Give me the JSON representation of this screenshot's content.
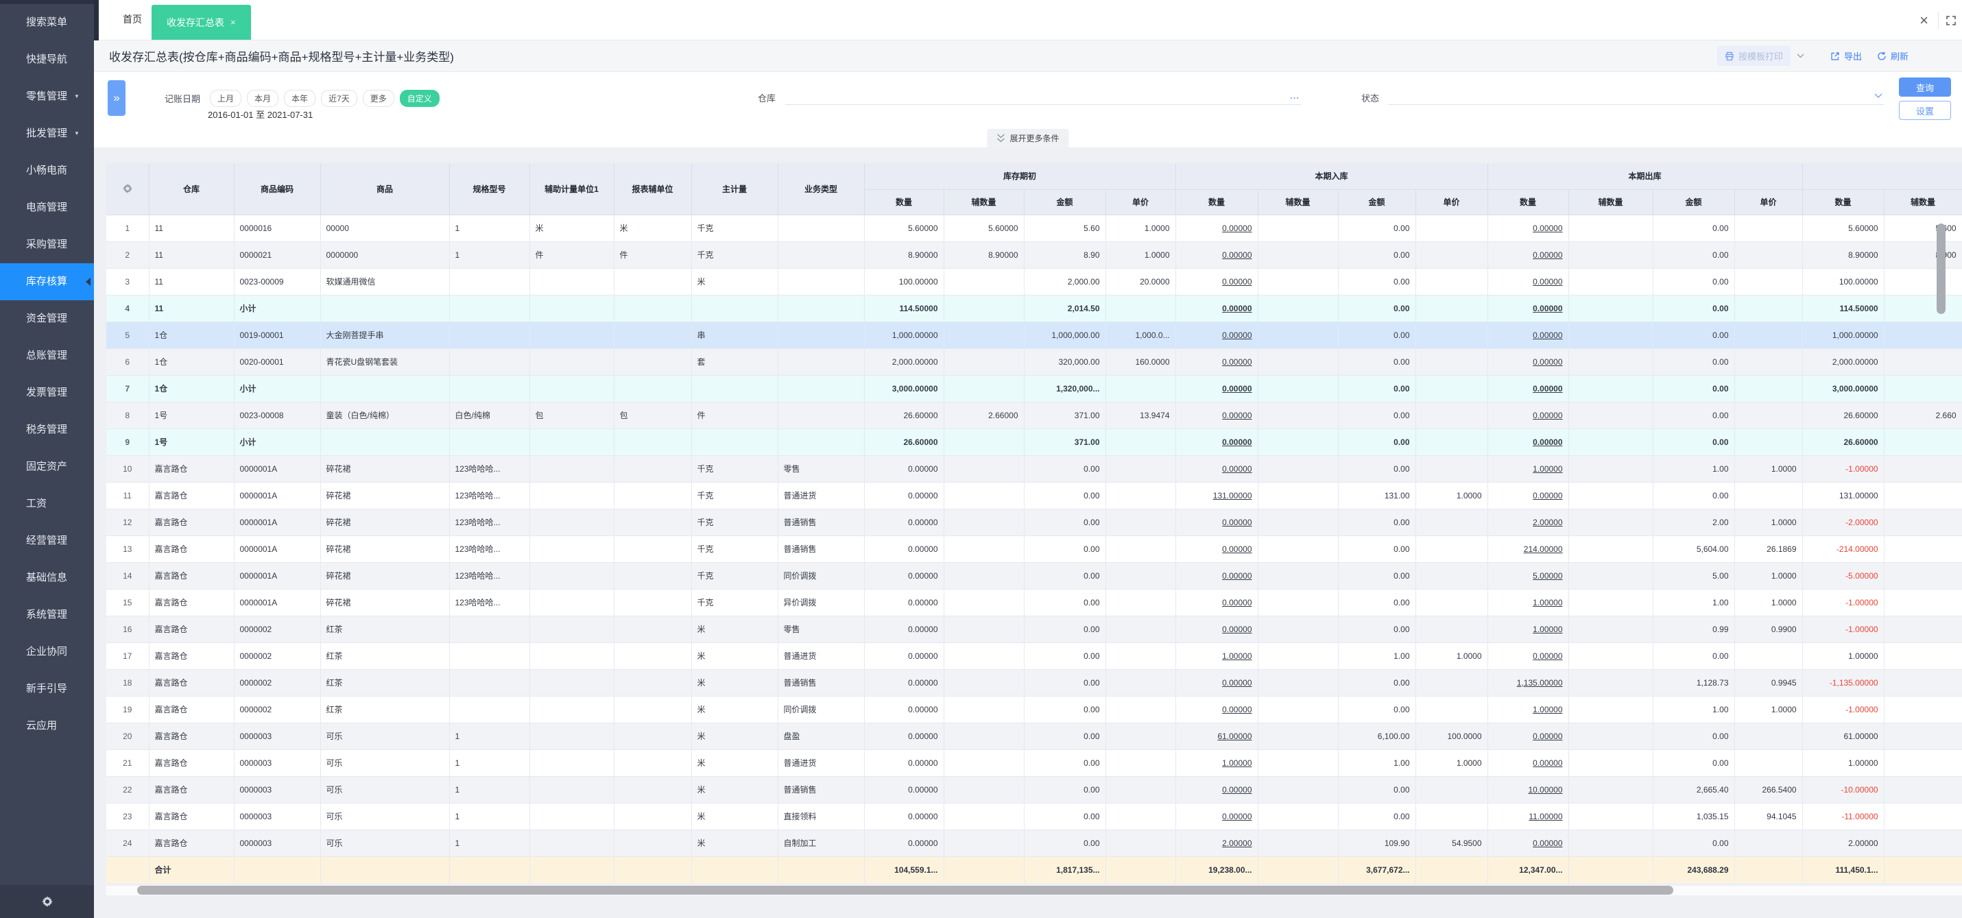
{
  "colors": {
    "accent_green": "#3cd09f",
    "accent_blue": "#1f8ffb",
    "link_blue": "#3d7ff8",
    "negative_red": "#f04134"
  },
  "sidebar": {
    "items": [
      {
        "label": "搜索菜单"
      },
      {
        "label": "快捷导航"
      },
      {
        "label": "零售管理",
        "arrow": true
      },
      {
        "label": "批发管理",
        "arrow": true
      },
      {
        "label": "小畅电商"
      },
      {
        "label": "电商管理"
      },
      {
        "label": "采购管理"
      },
      {
        "label": "库存核算",
        "active": true
      },
      {
        "label": "资金管理"
      },
      {
        "label": "总账管理"
      },
      {
        "label": "发票管理"
      },
      {
        "label": "税务管理"
      },
      {
        "label": "固定资产"
      },
      {
        "label": "工资"
      },
      {
        "label": "经营管理"
      },
      {
        "label": "基础信息"
      },
      {
        "label": "系统管理"
      },
      {
        "label": "企业协同"
      },
      {
        "label": "新手引导"
      },
      {
        "label": "云应用"
      }
    ]
  },
  "tabbar": {
    "home_label": "首页",
    "active_label": "收发存汇总表"
  },
  "titlebar": {
    "title": "收发存汇总表(按仓库+商品编码+商品+规格型号+主计量+业务类型)",
    "print_label": "按模板打印",
    "export_label": "导出",
    "refresh_label": "刷新"
  },
  "filters": {
    "date_label": "记账日期",
    "date_pills": [
      "上月",
      "本月",
      "本年",
      "近7天",
      "更多"
    ],
    "custom_pill": "自定义",
    "date_range": "2016-01-01 至 2021-07-31",
    "warehouse_label": "仓库",
    "warehouse_more": "...",
    "status_label": "状态",
    "query_label": "查询",
    "settings_label": "设置",
    "expand_more_label": "展开更多条件"
  },
  "table": {
    "left_headers": [
      "仓库",
      "商品编码",
      "商品",
      "规格型号",
      "辅助计量单位1",
      "报表辅单位",
      "主计量",
      "业务类型"
    ],
    "groups": [
      {
        "label": "库存期初",
        "span": 4
      },
      {
        "label": "本期入库",
        "span": 4
      },
      {
        "label": "本期出库",
        "span": 4
      },
      {
        "label": "",
        "span": 2
      }
    ],
    "sub_headers": [
      "数量",
      "辅数量",
      "金额",
      "单价"
    ],
    "rows": [
      {
        "num": "1",
        "type": "normal",
        "cells": [
          "11",
          "0000016",
          "00000",
          "1",
          "米",
          "米",
          "千克",
          "",
          "5.60000",
          "5.60000",
          "5.60",
          "1.0000",
          "0.00000",
          "",
          "0.00",
          "",
          "0.00000",
          "",
          "0.00",
          "",
          "5.60000",
          "5.600"
        ]
      },
      {
        "num": "2",
        "type": "normal",
        "cells": [
          "11",
          "0000021",
          "0000000",
          "1",
          "件",
          "件",
          "千克",
          "",
          "8.90000",
          "8.90000",
          "8.90",
          "1.0000",
          "0.00000",
          "",
          "0.00",
          "",
          "0.00000",
          "",
          "0.00",
          "",
          "8.90000",
          "8.900"
        ]
      },
      {
        "num": "3",
        "type": "normal",
        "cells": [
          "11",
          "0023-00009",
          "软媒通用微信",
          "",
          "",
          "",
          "米",
          "",
          "100.00000",
          "",
          "2,000.00",
          "20.0000",
          "0.00000",
          "",
          "0.00",
          "",
          "0.00000",
          "",
          "0.00",
          "",
          "100.00000",
          ""
        ]
      },
      {
        "num": "4",
        "type": "subtotal",
        "cells": [
          "11",
          "小计",
          "",
          "",
          "",
          "",
          "",
          "",
          "114.50000",
          "",
          "2,014.50",
          "",
          "0.00000",
          "",
          "0.00",
          "",
          "0.00000",
          "",
          "0.00",
          "",
          "114.50000",
          ""
        ]
      },
      {
        "num": "5",
        "type": "selected",
        "cells": [
          "1仓",
          "0019-00001",
          "大金刚菩提手串",
          "",
          "",
          "",
          "串",
          "",
          "1,000.00000",
          "",
          "1,000,000.00",
          "1,000.0...",
          "0.00000",
          "",
          "0.00",
          "",
          "0.00000",
          "",
          "0.00",
          "",
          "1,000.00000",
          ""
        ]
      },
      {
        "num": "6",
        "type": "normal",
        "cells": [
          "1仓",
          "0020-00001",
          "青花瓷U盘钢笔套装",
          "",
          "",
          "",
          "套",
          "",
          "2,000.00000",
          "",
          "320,000.00",
          "160.0000",
          "0.00000",
          "",
          "0.00",
          "",
          "0.00000",
          "",
          "0.00",
          "",
          "2,000.00000",
          ""
        ]
      },
      {
        "num": "7",
        "type": "subtotal",
        "cells": [
          "1仓",
          "小计",
          "",
          "",
          "",
          "",
          "",
          "",
          "3,000.00000",
          "",
          "1,320,000...",
          "",
          "0.00000",
          "",
          "0.00",
          "",
          "0.00000",
          "",
          "0.00",
          "",
          "3,000.00000",
          ""
        ]
      },
      {
        "num": "8",
        "type": "normal",
        "cells": [
          "1号",
          "0023-00008",
          "童装（白色/纯棉）",
          "白色/纯棉",
          "包",
          "包",
          "件",
          "",
          "26.60000",
          "2.66000",
          "371.00",
          "13.9474",
          "0.00000",
          "",
          "0.00",
          "",
          "0.00000",
          "",
          "0.00",
          "",
          "26.60000",
          "2.660"
        ]
      },
      {
        "num": "9",
        "type": "subtotal",
        "cells": [
          "1号",
          "小计",
          "",
          "",
          "",
          "",
          "",
          "",
          "26.60000",
          "",
          "371.00",
          "",
          "0.00000",
          "",
          "0.00",
          "",
          "0.00000",
          "",
          "0.00",
          "",
          "26.60000",
          ""
        ]
      },
      {
        "num": "10",
        "type": "normal",
        "cells": [
          "嘉言路仓",
          "0000001A",
          "碎花裙",
          "123哈哈哈...",
          "",
          "",
          "千克",
          "零售",
          "0.00000",
          "",
          "0.00",
          "",
          "0.00000",
          "",
          "0.00",
          "",
          "1.00000",
          "",
          "1.00",
          "1.0000",
          "-1.00000",
          ""
        ]
      },
      {
        "num": "11",
        "type": "normal",
        "cells": [
          "嘉言路仓",
          "0000001A",
          "碎花裙",
          "123哈哈哈...",
          "",
          "",
          "千克",
          "普通进货",
          "0.00000",
          "",
          "0.00",
          "",
          "131.00000",
          "",
          "131.00",
          "1.0000",
          "0.00000",
          "",
          "0.00",
          "",
          "131.00000",
          ""
        ]
      },
      {
        "num": "12",
        "type": "normal",
        "cells": [
          "嘉言路仓",
          "0000001A",
          "碎花裙",
          "123哈哈哈...",
          "",
          "",
          "千克",
          "普通销售",
          "0.00000",
          "",
          "0.00",
          "",
          "0.00000",
          "",
          "0.00",
          "",
          "2.00000",
          "",
          "2.00",
          "1.0000",
          "-2.00000",
          ""
        ]
      },
      {
        "num": "13",
        "type": "normal",
        "cells": [
          "嘉言路仓",
          "0000001A",
          "碎花裙",
          "123哈哈哈...",
          "",
          "",
          "千克",
          "普通销售",
          "0.00000",
          "",
          "0.00",
          "",
          "0.00000",
          "",
          "0.00",
          "",
          "214.00000",
          "",
          "5,604.00",
          "26.1869",
          "-214.00000",
          ""
        ]
      },
      {
        "num": "14",
        "type": "normal",
        "cells": [
          "嘉言路仓",
          "0000001A",
          "碎花裙",
          "123哈哈哈...",
          "",
          "",
          "千克",
          "同价调拨",
          "0.00000",
          "",
          "0.00",
          "",
          "0.00000",
          "",
          "0.00",
          "",
          "5.00000",
          "",
          "5.00",
          "1.0000",
          "-5.00000",
          ""
        ]
      },
      {
        "num": "15",
        "type": "normal",
        "cells": [
          "嘉言路仓",
          "0000001A",
          "碎花裙",
          "123哈哈哈...",
          "",
          "",
          "千克",
          "异价调拨",
          "0.00000",
          "",
          "0.00",
          "",
          "0.00000",
          "",
          "0.00",
          "",
          "1.00000",
          "",
          "1.00",
          "1.0000",
          "-1.00000",
          ""
        ]
      },
      {
        "num": "16",
        "type": "normal",
        "cells": [
          "嘉言路仓",
          "0000002",
          "红茶",
          "",
          "",
          "",
          "米",
          "零售",
          "0.00000",
          "",
          "0.00",
          "",
          "0.00000",
          "",
          "0.00",
          "",
          "1.00000",
          "",
          "0.99",
          "0.9900",
          "-1.00000",
          ""
        ]
      },
      {
        "num": "17",
        "type": "normal",
        "cells": [
          "嘉言路仓",
          "0000002",
          "红茶",
          "",
          "",
          "",
          "米",
          "普通进货",
          "0.00000",
          "",
          "0.00",
          "",
          "1.00000",
          "",
          "1.00",
          "1.0000",
          "0.00000",
          "",
          "0.00",
          "",
          "1.00000",
          ""
        ]
      },
      {
        "num": "18",
        "type": "normal",
        "cells": [
          "嘉言路仓",
          "0000002",
          "红茶",
          "",
          "",
          "",
          "米",
          "普通销售",
          "0.00000",
          "",
          "0.00",
          "",
          "0.00000",
          "",
          "0.00",
          "",
          "1,135.00000",
          "",
          "1,128.73",
          "0.9945",
          "-1,135.00000",
          ""
        ]
      },
      {
        "num": "19",
        "type": "normal",
        "cells": [
          "嘉言路仓",
          "0000002",
          "红茶",
          "",
          "",
          "",
          "米",
          "同价调拨",
          "0.00000",
          "",
          "0.00",
          "",
          "0.00000",
          "",
          "0.00",
          "",
          "1.00000",
          "",
          "1.00",
          "1.0000",
          "-1.00000",
          ""
        ]
      },
      {
        "num": "20",
        "type": "normal",
        "cells": [
          "嘉言路仓",
          "0000003",
          "可乐",
          "1",
          "",
          "",
          "米",
          "盘盈",
          "0.00000",
          "",
          "0.00",
          "",
          "61.00000",
          "",
          "6,100.00",
          "100.0000",
          "0.00000",
          "",
          "0.00",
          "",
          "61.00000",
          ""
        ]
      },
      {
        "num": "21",
        "type": "normal",
        "cells": [
          "嘉言路仓",
          "0000003",
          "可乐",
          "1",
          "",
          "",
          "米",
          "普通进货",
          "0.00000",
          "",
          "0.00",
          "",
          "1.00000",
          "",
          "1.00",
          "1.0000",
          "0.00000",
          "",
          "0.00",
          "",
          "1.00000",
          ""
        ]
      },
      {
        "num": "22",
        "type": "normal",
        "cells": [
          "嘉言路仓",
          "0000003",
          "可乐",
          "1",
          "",
          "",
          "米",
          "普通销售",
          "0.00000",
          "",
          "0.00",
          "",
          "0.00000",
          "",
          "0.00",
          "",
          "10.00000",
          "",
          "2,665.40",
          "266.5400",
          "-10.00000",
          ""
        ]
      },
      {
        "num": "23",
        "type": "normal",
        "cells": [
          "嘉言路仓",
          "0000003",
          "可乐",
          "1",
          "",
          "",
          "米",
          "直接领料",
          "0.00000",
          "",
          "0.00",
          "",
          "0.00000",
          "",
          "0.00",
          "",
          "11.00000",
          "",
          "1,035.15",
          "94.1045",
          "-11.00000",
          ""
        ]
      },
      {
        "num": "24",
        "type": "normal",
        "cells": [
          "嘉言路仓",
          "0000003",
          "可乐",
          "1",
          "",
          "",
          "米",
          "自制加工",
          "0.00000",
          "",
          "0.00",
          "",
          "2.00000",
          "",
          "109.90",
          "54.9500",
          "0.00000",
          "",
          "0.00",
          "",
          "2.00000",
          ""
        ]
      },
      {
        "num": "",
        "type": "total",
        "cells": [
          "合计",
          "",
          "",
          "",
          "",
          "",
          "",
          "",
          "104,559.1...",
          "",
          "1,817,135...",
          "",
          "19,238.00...",
          "",
          "3,677,672...",
          "",
          "12,347.00...",
          "",
          "243,688.29",
          "",
          "111,450.1...",
          ""
        ]
      }
    ]
  }
}
